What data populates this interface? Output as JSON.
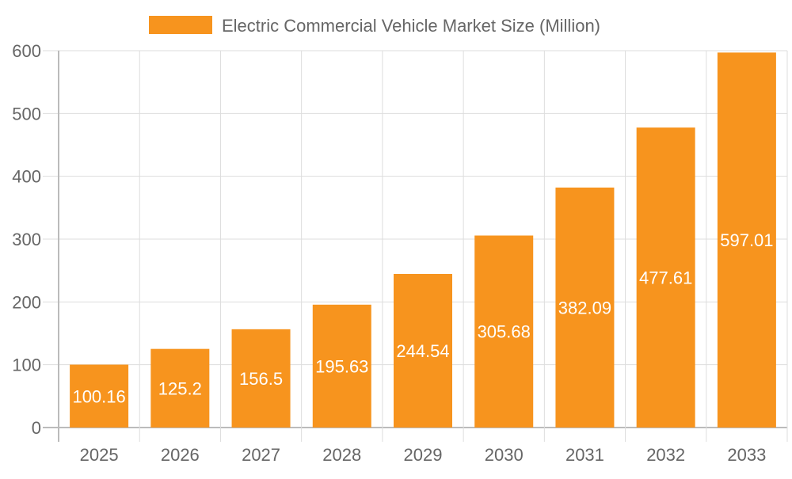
{
  "chart_data": {
    "type": "bar",
    "title": "",
    "xlabel": "",
    "ylabel": "",
    "categories": [
      "2025",
      "2026",
      "2027",
      "2028",
      "2029",
      "2030",
      "2031",
      "2032",
      "2033"
    ],
    "series": [
      {
        "name": "Electric Commercial Vehicle Market Size (Million)",
        "values": [
          100.16,
          125.2,
          156.5,
          195.63,
          244.54,
          305.68,
          382.09,
          477.61,
          597.01
        ],
        "color": "#F7941E"
      }
    ],
    "data_labels": [
      "100.16",
      "125.2",
      "156.5",
      "195.63",
      "244.54",
      "305.68",
      "382.09",
      "477.61",
      "597.01"
    ],
    "ylim": [
      0,
      600
    ],
    "yticks": [
      "0",
      "100",
      "200",
      "300",
      "400",
      "500",
      "600"
    ],
    "grid": true,
    "legend_position": "top"
  }
}
